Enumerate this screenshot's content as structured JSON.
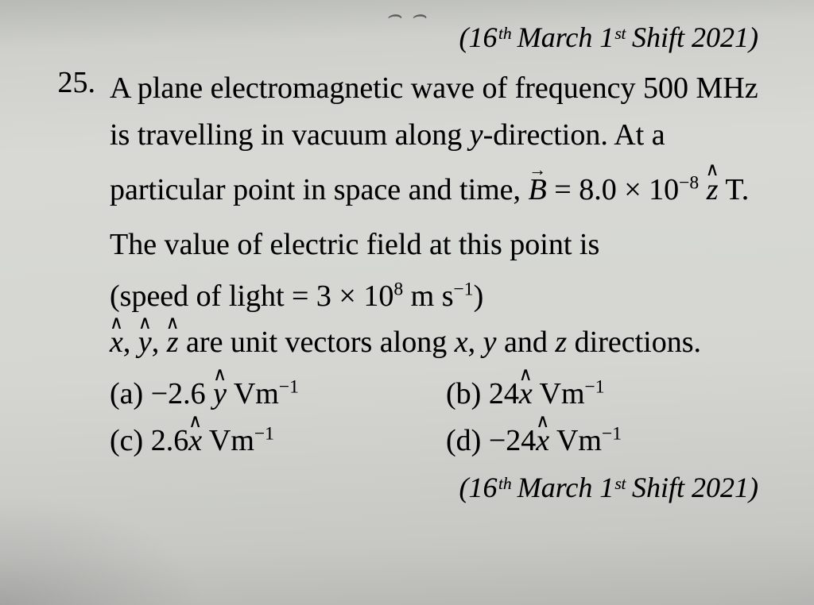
{
  "colors": {
    "text": "#000000",
    "paper_mid": "#d5d6d2",
    "paper_edge": "#b6b7b3",
    "faint_text": "rgba(0,0,0,0.22)"
  },
  "typography": {
    "family": "Georgia, 'Times New Roman', serif",
    "body_pt": 38,
    "date_pt": 36,
    "line_height": 1.55
  },
  "faint_top": "⌢      ⌢",
  "date_top": "(16ᵗʰ March 1ˢᵗ Shift 2021)",
  "question": {
    "number": "25.",
    "line1_pre": "A plane electromagnetic wave of frequency 500 MHz",
    "line2": "is travelling in vacuum along ",
    "line2_y": "y",
    "line2_post": "-direction. At a",
    "line3_pre": "particular point in space and time, ",
    "line3_B": "B",
    "line3_eq": " = 8.0 × 10",
    "line3_exp": "−8",
    "line3_zhat": "z",
    "line3_unit": " T.",
    "line4": "The value of electric field at this point is",
    "line5_pre": "(speed of light = 3 × 10",
    "line5_exp": "8",
    "line5_post": " m s",
    "line5_exp2": "−1",
    "line5_close": ")",
    "line6_x": "x",
    "line6_c1": ", ",
    "line6_y": "y",
    "line6_c2": ", ",
    "line6_z": "z",
    "line6_post": " are unit vectors along ",
    "line6_xx": "x",
    "line6_cy": ", ",
    "line6_yy": "y",
    "line6_and": " and ",
    "line6_zz": "z",
    "line6_dir": " directions."
  },
  "options": {
    "a": {
      "label": "(a)",
      "val": " −2.6 ",
      "hat": "y",
      "unit": " Vm",
      "exp": "−1"
    },
    "b": {
      "label": "(b)",
      "val": " 24",
      "hat": "x",
      "unit": " Vm",
      "exp": "−1"
    },
    "c": {
      "label": "(c)",
      "val": " 2.6",
      "hat": "x",
      "unit": " Vm",
      "exp": "−1"
    },
    "d": {
      "label": "(d)",
      "val": " −24",
      "hat": "x",
      "unit": " Vm",
      "exp": "−1"
    }
  },
  "date_bottom": "(16ᵗʰ March 1ˢᵗ Shift 2021)"
}
